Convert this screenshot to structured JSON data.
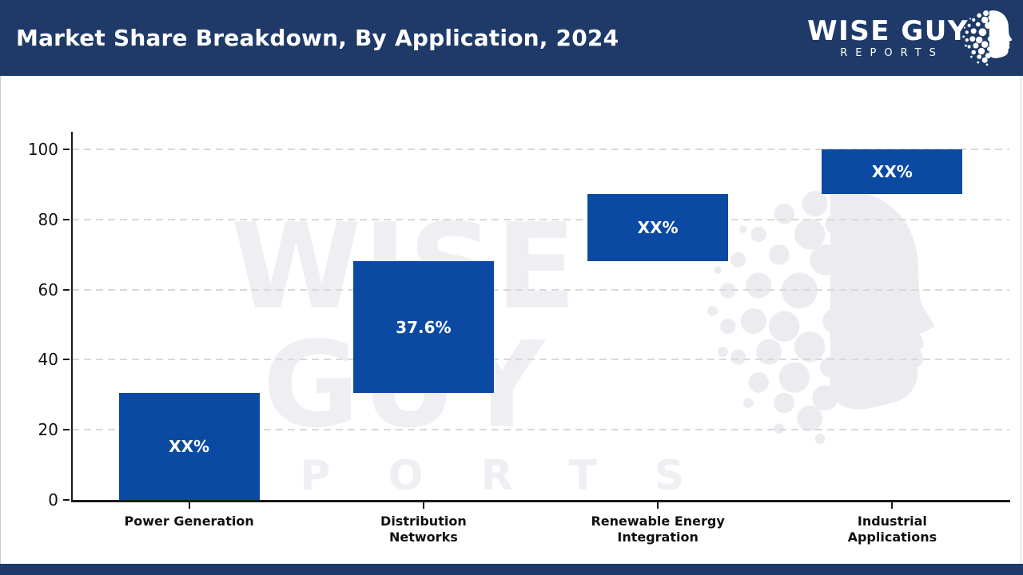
{
  "header": {
    "title": "Market Share Breakdown, By Application, 2024",
    "logo": {
      "line1": "WISE GUY",
      "line2": "REPORTS"
    }
  },
  "watermark": {
    "line1": "WISE GUY",
    "line2": "REPORTS"
  },
  "colors": {
    "header_bg": "#1f3a68",
    "bar_color": "#0b4aa2",
    "axis_color": "#1a1a1a",
    "grid_color": "#d9d9d9",
    "watermark_text": "#efeff3",
    "watermark_head": "#ececf0",
    "bar_label_color": "#ffffff",
    "text_color": "#111111"
  },
  "chart_data": {
    "type": "bar",
    "subtype": "floating-waterfall",
    "title": "Market Share Breakdown, By Application, 2024",
    "categories": [
      "Power Generation",
      "Distribution Networks",
      "Renewable Energy Integration",
      "Industrial Applications"
    ],
    "category_label_lines": [
      [
        "Power Generation"
      ],
      [
        "Distribution",
        "Networks"
      ],
      [
        "Renewable Energy",
        "Integration"
      ],
      [
        "Industrial",
        "Applications"
      ]
    ],
    "segments": [
      {
        "category": "Power Generation",
        "start": 0,
        "end": 30.5,
        "value_label": "XX%"
      },
      {
        "category": "Distribution Networks",
        "start": 30.5,
        "end": 68.1,
        "value_label": "37.6%"
      },
      {
        "category": "Renewable Energy Integration",
        "start": 68.1,
        "end": 87.2,
        "value_label": "XX%"
      },
      {
        "category": "Industrial Applications",
        "start": 87.2,
        "end": 100,
        "value_label": "XX%"
      }
    ],
    "yticks": [
      0,
      20,
      40,
      60,
      80,
      100
    ],
    "ylim": [
      0,
      100
    ],
    "xlabel": "",
    "ylabel": "",
    "grid": "horizontal-dashed",
    "legend": "none"
  }
}
